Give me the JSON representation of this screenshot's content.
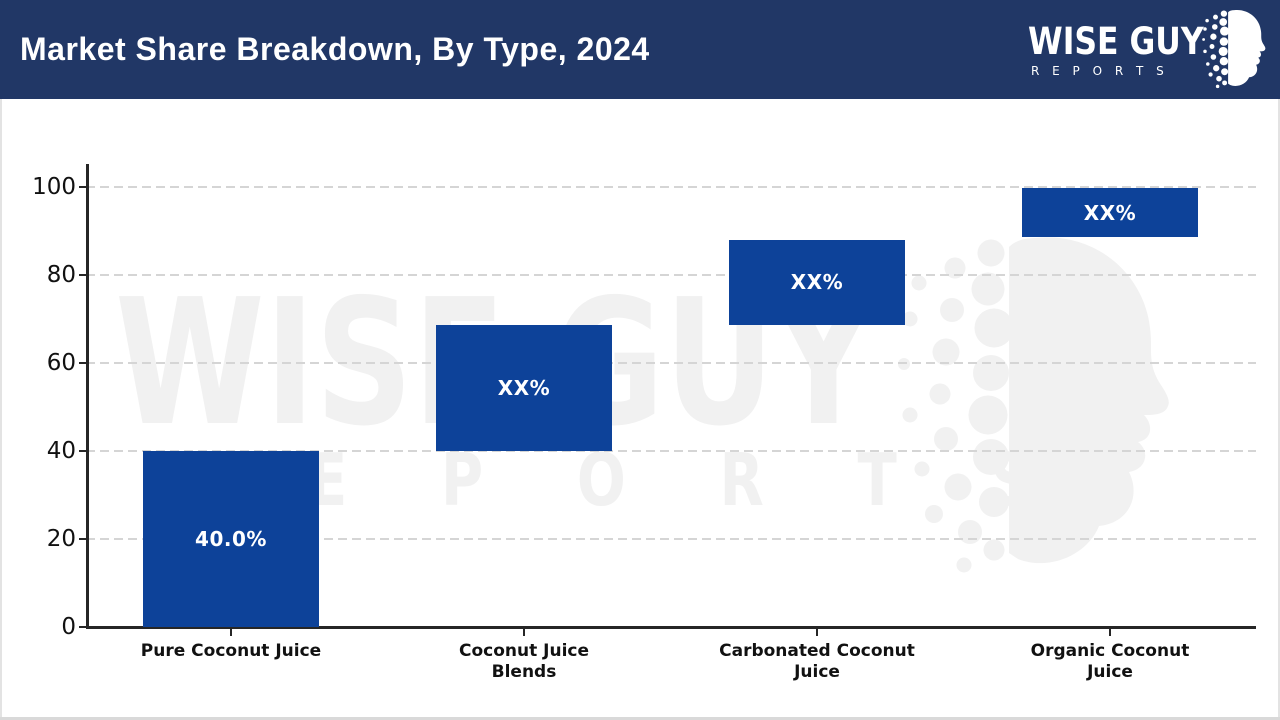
{
  "header": {
    "title": "Market Share Breakdown, By Type, 2024",
    "bg_color": "#213766",
    "logo": {
      "wordmark": "WISE GUY",
      "subtext": "R E P O R T S",
      "face_icon": "dotted-head-profile"
    }
  },
  "watermark": {
    "wordmark": "WISE GUY",
    "subtext": "R E P O R T S",
    "color": "#f1f1f1"
  },
  "chart_data": {
    "type": "bar",
    "variant": "waterfall",
    "title": "Market Share Breakdown, By Type, 2024",
    "categories": [
      "Pure Coconut Juice",
      "Coconut Juice Blends",
      "Carbonated Coconut Juice",
      "Organic Coconut Juice"
    ],
    "segments": [
      {
        "category": "Pure Coconut Juice",
        "start": 0,
        "end": 40.0,
        "label": "40.0%"
      },
      {
        "category": "Coconut Juice Blends",
        "start": 40.0,
        "end": 68.7,
        "label": "XX%"
      },
      {
        "category": "Carbonated Coconut Juice",
        "start": 68.7,
        "end": 88.0,
        "label": "XX%"
      },
      {
        "category": "Organic Coconut Juice",
        "start": 88.6,
        "end": 99.8,
        "label": "XX%"
      }
    ],
    "ylim": [
      0,
      105
    ],
    "yticks": [
      0,
      20,
      40,
      60,
      80,
      100
    ],
    "grid": {
      "axis": "y",
      "style": "dashed",
      "color": "#d5d5d5"
    },
    "legend": null,
    "bar_color": "#0d4299",
    "bar_label_color": "#ffffff",
    "axis_color": "#262626"
  },
  "x_axis_labels": [
    {
      "line1": "Pure Coconut Juice",
      "line2": ""
    },
    {
      "line1": "Coconut Juice",
      "line2": "Blends"
    },
    {
      "line1": "Carbonated Coconut",
      "line2": "Juice"
    },
    {
      "line1": "Organic Coconut",
      "line2": "Juice"
    }
  ]
}
